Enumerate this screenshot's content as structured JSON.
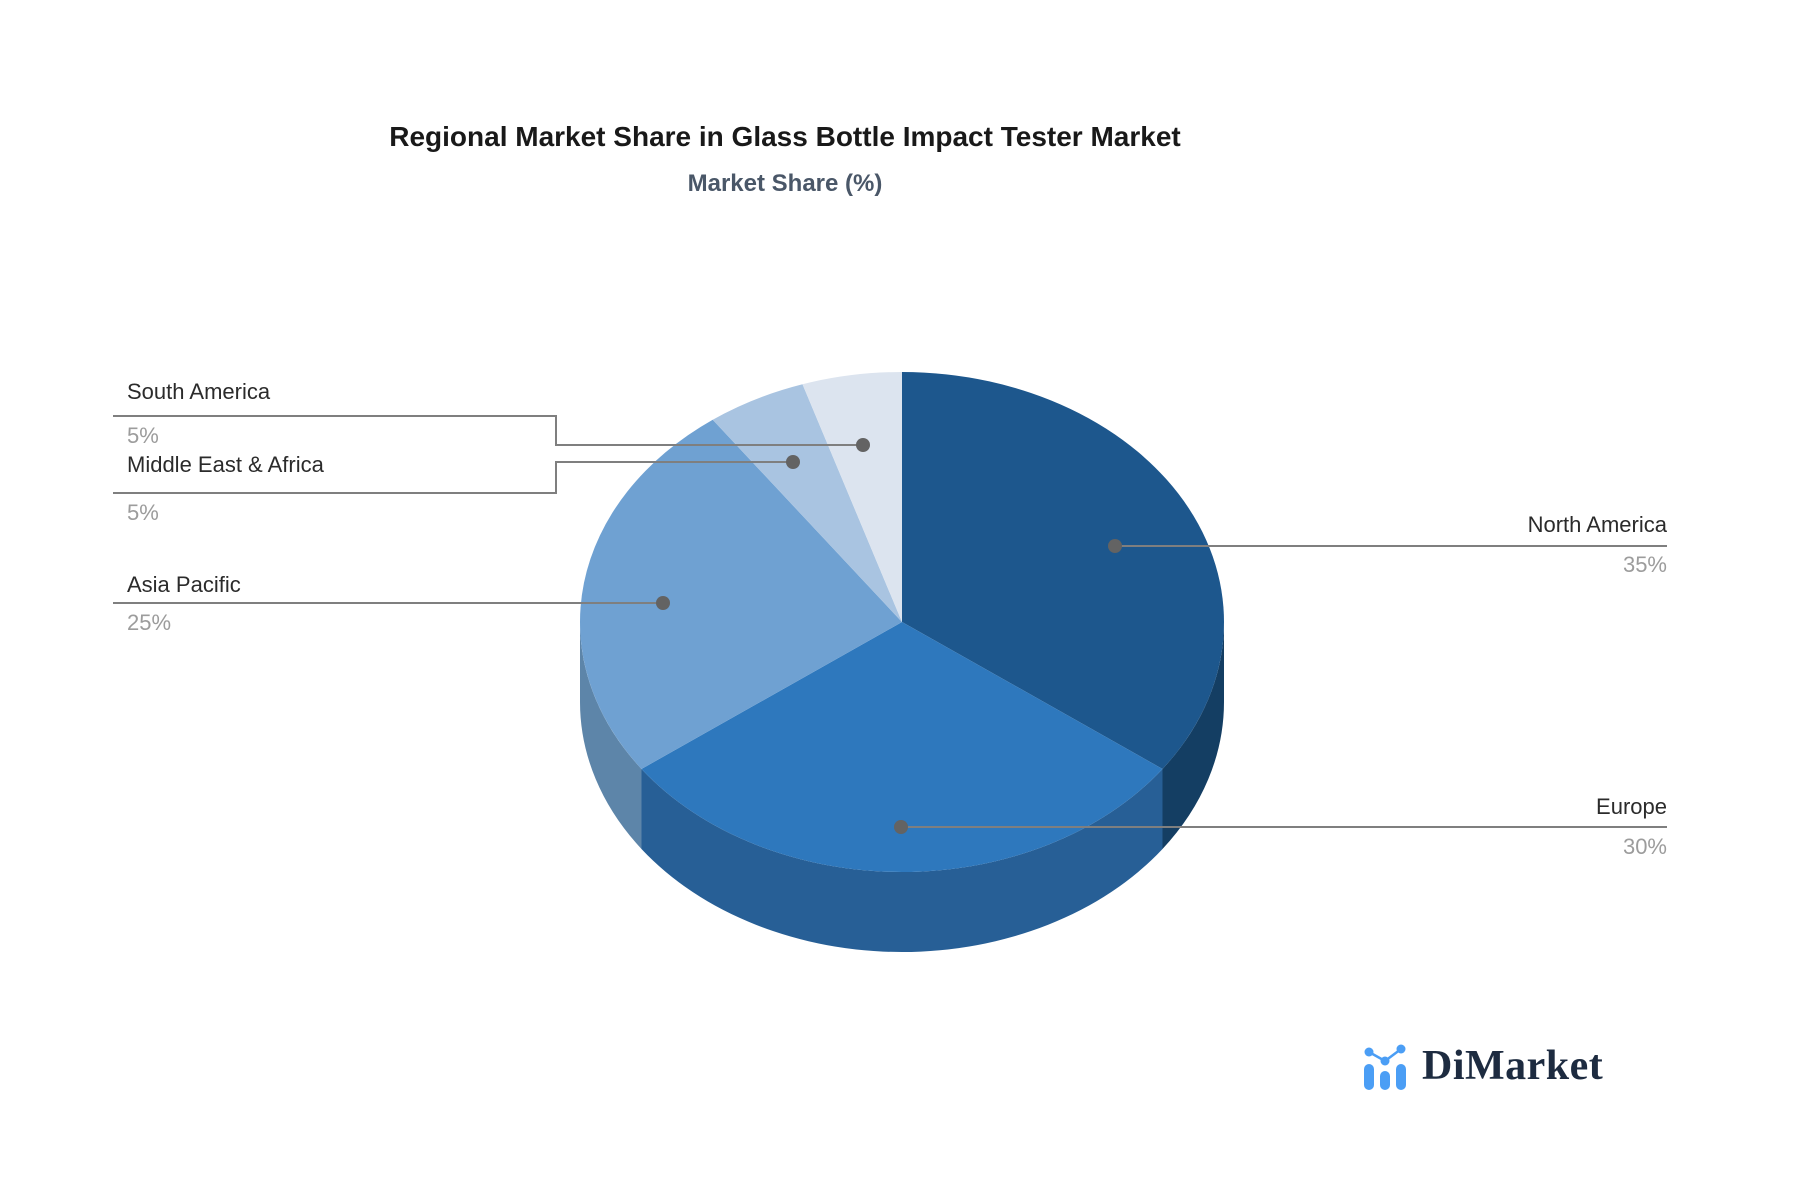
{
  "header": {
    "title": "Regional Market Share in Glass Bottle Impact Tester Market",
    "subtitle": "Market Share (%)"
  },
  "chart_data": {
    "type": "pie",
    "style": "3d-pie-with-callouts",
    "title": "Regional Market Share in Glass Bottle Impact Tester Market",
    "subtitle": "Market Share (%)",
    "unit": "%",
    "start_angle_deg": 0,
    "clockwise": true,
    "categories": [
      "North America",
      "Europe",
      "Asia Pacific",
      "Middle East & Africa",
      "South America"
    ],
    "values": [
      35,
      30,
      25,
      5,
      5
    ],
    "series": [
      {
        "name": "North America",
        "value": 35,
        "display": "35%",
        "color": "#1d578d",
        "side_color": "#143e63"
      },
      {
        "name": "Europe",
        "value": 30,
        "display": "30%",
        "color": "#2e78bd",
        "side_color": "#275f96"
      },
      {
        "name": "Asia Pacific",
        "value": 25,
        "display": "25%",
        "color": "#6fa1d2",
        "side_color": "#5d85a9"
      },
      {
        "name": "Middle East & Africa",
        "value": 5,
        "display": "5%",
        "color": "#a9c4e1",
        "side_color": "#8fb0d0"
      },
      {
        "name": "South America",
        "value": 5,
        "display": "5%",
        "color": "#dce4ef",
        "side_color": "#c5d2e2"
      }
    ],
    "legend": "none",
    "label_style": "outside callout lines with gray percentage values"
  },
  "callouts": {
    "south_america": {
      "label": "South America",
      "value": "5%"
    },
    "middle_east_africa": {
      "label": "Middle East & Africa",
      "value": "5%"
    },
    "asia_pacific": {
      "label": "Asia Pacific",
      "value": "25%"
    },
    "north_america": {
      "label": "North America",
      "value": "35%"
    },
    "europe": {
      "label": "Europe",
      "value": "30%"
    }
  },
  "colors": {
    "title_text": "#191919",
    "subtitle_text": "#4a5768",
    "callout_label": "#2b2b2b",
    "callout_value": "#9c9c9c",
    "leader_line": "#7f7f7f",
    "leader_dot": "#636363",
    "background": "#ffffff"
  },
  "logo": {
    "text": "DiMarket",
    "text_color": "#1d2b40",
    "icon_color": "#4b9ef5"
  }
}
